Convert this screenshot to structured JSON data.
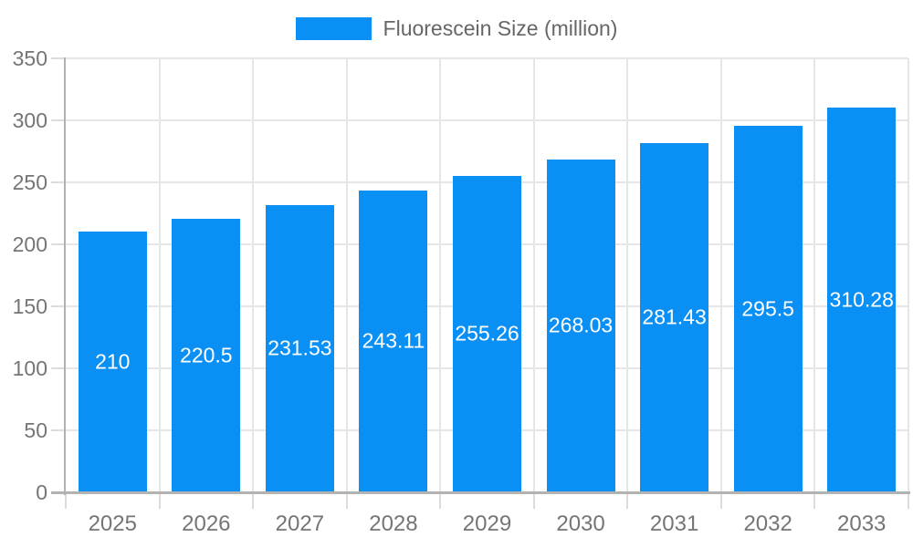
{
  "legend": {
    "label": "Fluorescein Size (million)"
  },
  "colors": {
    "bar": "#0a90f4",
    "axis_line": "#b2b2b2",
    "grid_line": "#e6e6e6",
    "tick_mark": "#dcdcdc",
    "axis_text": "#757575",
    "legend_text": "#666666",
    "bar_label_text": "#ffffff",
    "background": "#ffffff"
  },
  "chart_data": {
    "type": "bar",
    "title": "",
    "xlabel": "",
    "ylabel": "",
    "categories": [
      "2025",
      "2026",
      "2027",
      "2028",
      "2029",
      "2030",
      "2031",
      "2032",
      "2033"
    ],
    "series": [
      {
        "name": "Fluorescein Size (million)",
        "values": [
          210,
          220.5,
          231.53,
          243.11,
          255.26,
          268.03,
          281.43,
          295.5,
          310.28
        ]
      }
    ],
    "bar_labels": [
      "210",
      "220.5",
      "231.53",
      "243.11",
      "255.26",
      "268.03",
      "281.43",
      "295.5",
      "310.28"
    ],
    "ylim": [
      0,
      350
    ],
    "yticks": [
      0,
      50,
      100,
      150,
      200,
      250,
      300,
      350
    ],
    "grid": true,
    "legend_position": "top-center"
  }
}
